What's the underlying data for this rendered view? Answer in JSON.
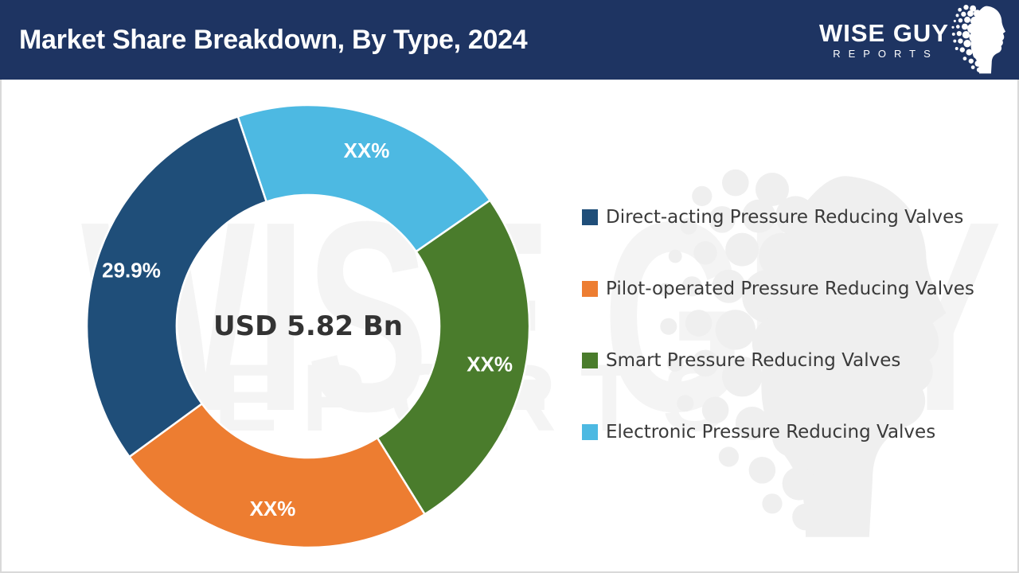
{
  "header": {
    "title": "Market Share Breakdown, By Type, 2024",
    "logo": {
      "line1": "WISE GUY",
      "line2": "REPORTS"
    }
  },
  "watermark": {
    "line1": "WISE GUY",
    "line2": "REPORTS"
  },
  "chart_data": {
    "type": "pie",
    "subtype": "donut",
    "title": "Market Share Breakdown, By Type, 2024",
    "center_label": "USD 5.82 Bn",
    "start_angle_deg": -18.5,
    "legend_position": "right",
    "slices": [
      {
        "name": "Electronic Pressure Reducing Valves",
        "display_label": "XX%",
        "value_pct": 20.5,
        "color": "#4DB9E2"
      },
      {
        "name": "Smart Pressure Reducing Valves",
        "display_label": "XX%",
        "value_pct": 25.8,
        "color": "#4A7C2C"
      },
      {
        "name": "Pilot-operated Pressure Reducing Valves",
        "display_label": "XX%",
        "value_pct": 23.8,
        "color": "#ED7D31"
      },
      {
        "name": "Direct-acting Pressure Reducing Valves",
        "display_label": "29.9%",
        "value_pct": 29.9,
        "color": "#1F4E79"
      }
    ]
  },
  "legend": {
    "items": [
      {
        "label": "Direct-acting Pressure Reducing Valves",
        "color": "#1F4E79"
      },
      {
        "label": "Pilot-operated Pressure Reducing Valves",
        "color": "#ED7D31"
      },
      {
        "label": "Smart Pressure Reducing Valves",
        "color": "#4A7C2C"
      },
      {
        "label": "Electronic Pressure Reducing Valves",
        "color": "#4DB9E2"
      }
    ]
  }
}
